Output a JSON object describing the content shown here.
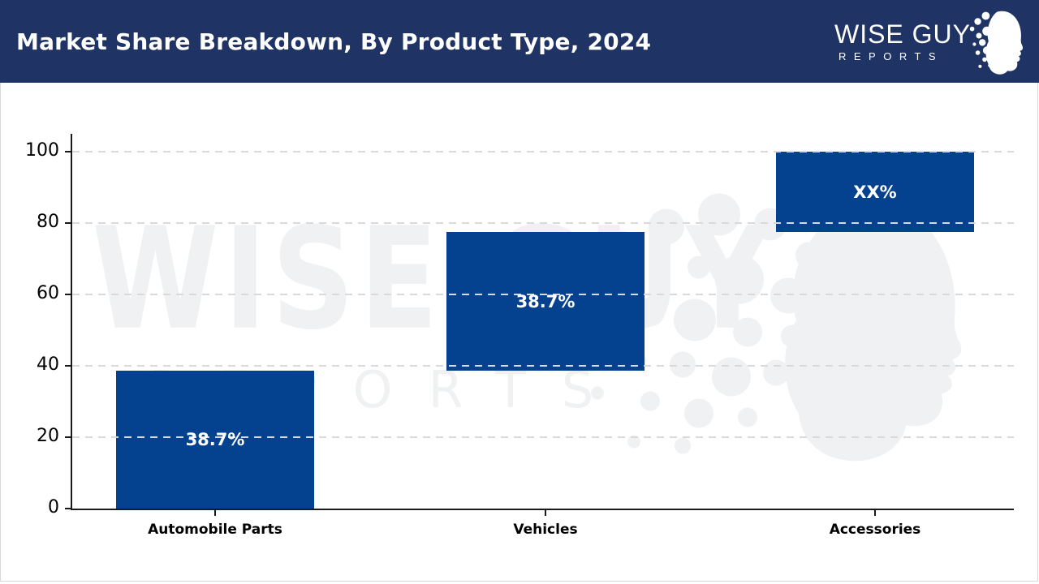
{
  "header": {
    "title": "Market Share Breakdown, By Product Type, 2024",
    "logo": {
      "wordmark": "WISE GUY",
      "subtext": "REPORTS"
    }
  },
  "watermark": {
    "wordmark": "WISE GUY",
    "subtext": "REPORTS"
  },
  "chart_data": {
    "type": "bar",
    "subtype": "floating_segment_bars",
    "title": "Market Share Breakdown, By Product Type, 2024",
    "categories": [
      "Automobile Parts",
      "Vehicles",
      "Accessories"
    ],
    "series": [
      {
        "name": "Market Share",
        "segments": [
          {
            "category": "Automobile Parts",
            "start": 0,
            "end": 38.7,
            "label": "38.7%"
          },
          {
            "category": "Vehicles",
            "start": 38.7,
            "end": 77.4,
            "label": "38.7%"
          },
          {
            "category": "Accessories",
            "start": 77.4,
            "end": 100,
            "label": "XX%"
          }
        ]
      }
    ],
    "y_ticks": [
      0,
      20,
      40,
      60,
      80,
      100
    ],
    "ylim": [
      0,
      105
    ],
    "xlabel": "",
    "ylabel": "",
    "grid": "horizontal_dashed",
    "legend": "none",
    "colors": {
      "bar": "#04418f",
      "bar_label": "#ffffff",
      "grid": "#d9d9d9",
      "axis": "#1a1a1a",
      "tick_label": "#000000",
      "category_label": "#000000"
    }
  },
  "theme": {
    "header_bg": "#1f3364",
    "page_bg": "#ffffff",
    "watermark_color": "#f0f1f3",
    "content_border": "#d8d8d8"
  }
}
